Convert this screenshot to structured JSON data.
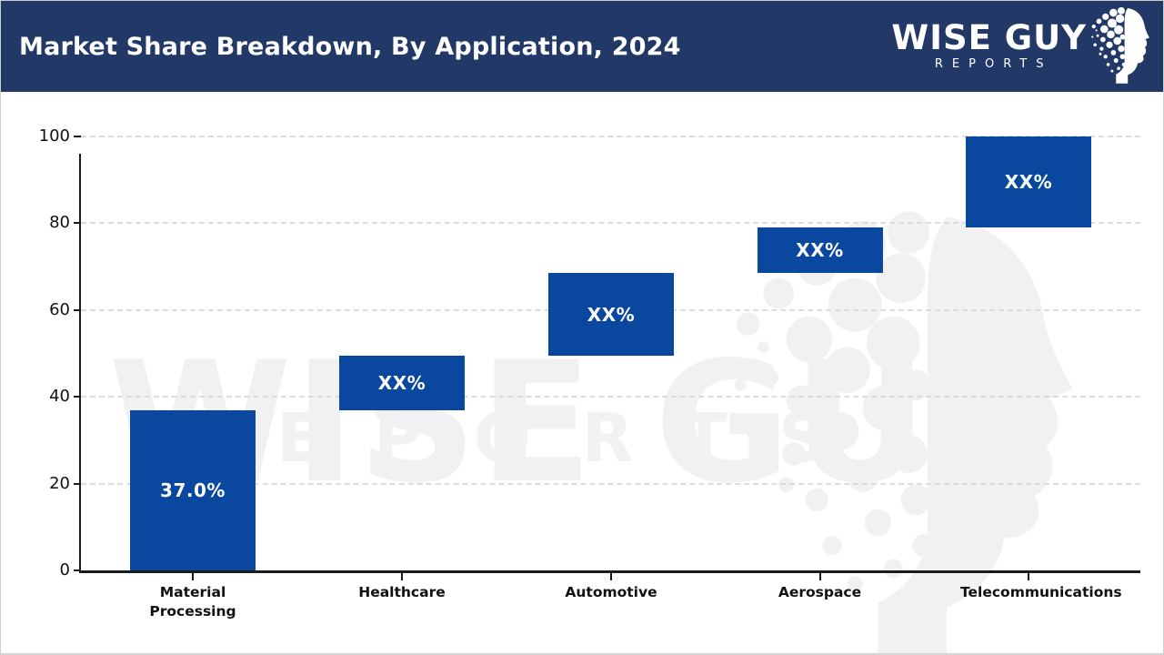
{
  "header": {
    "title": "Market Share Breakdown, By Application, 2024"
  },
  "brand": {
    "logo_name": "WISE GUY",
    "logo_subtitle": "REPORTS",
    "watermark_line1": "WISE GUY",
    "watermark_line2": "REPORTS"
  },
  "colors": {
    "header_bg": "#223968",
    "bar_blue": "#0a479f",
    "bar_label_text": "#ffffff",
    "gridline": "#dcdcdc",
    "axis": "#1a1a1a",
    "watermark": "#f1f1f4",
    "page_border": "#cfcfcf"
  },
  "chart_data": {
    "type": "bar",
    "subtype": "waterfall",
    "title": "Market Share Breakdown, By Application, 2024",
    "categories": [
      "Material Processing",
      "Healthcare",
      "Automotive",
      "Aerospace",
      "Telecommunications"
    ],
    "segments": [
      {
        "category": "Material Processing",
        "start": 0,
        "end": 37,
        "value": 37.0,
        "value_label": "37.0%"
      },
      {
        "category": "Healthcare",
        "start": 37,
        "end": 49.5,
        "value": 12.5,
        "value_label": "XX%"
      },
      {
        "category": "Automotive",
        "start": 49.5,
        "end": 68.5,
        "value": 19.0,
        "value_label": "XX%"
      },
      {
        "category": "Aerospace",
        "start": 68.5,
        "end": 79,
        "value": 10.5,
        "value_label": "XX%"
      },
      {
        "category": "Telecommunications",
        "start": 79,
        "end": 100,
        "value": 21.0,
        "value_label": "XX%"
      }
    ],
    "ylabel": "",
    "xlabel": "",
    "ylim": [
      0,
      100
    ],
    "yticks": [
      "0",
      "20",
      "40",
      "60",
      "80",
      "100"
    ],
    "grid": "horizontal dashed, at every 20 units",
    "legend": "none",
    "bar_value_labels_position": "center of each bar"
  }
}
